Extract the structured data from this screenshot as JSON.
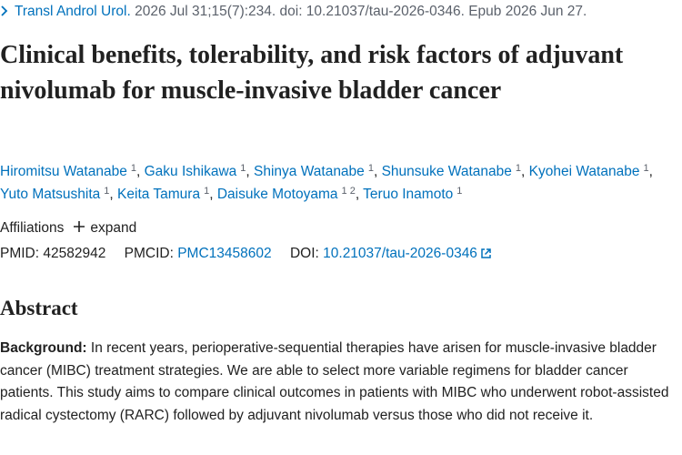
{
  "citation": {
    "journal": "Transl Androl Urol.",
    "details": "2026 Jul 31;15(7):234. doi: 10.21037/tau-2026-0346. Epub 2026 Jun 27."
  },
  "title": "Clinical benefits, tolerability, and risk factors of adjuvant nivolumab for muscle-invasive bladder cancer",
  "authors_separator": ",",
  "authors": [
    {
      "name": "Hiromitsu Watanabe",
      "affiliations": [
        1
      ]
    },
    {
      "name": "Gaku Ishikawa",
      "affiliations": [
        1
      ]
    },
    {
      "name": "Shinya Watanabe",
      "affiliations": [
        1
      ]
    },
    {
      "name": "Shunsuke Watanabe",
      "affiliations": [
        1
      ]
    },
    {
      "name": "Kyohei Watanabe",
      "affiliations": [
        1
      ]
    },
    {
      "name": "Yuto Matsushita",
      "affiliations": [
        1
      ]
    },
    {
      "name": "Keita Tamura",
      "affiliations": [
        1
      ]
    },
    {
      "name": "Daisuke Motoyama",
      "affiliations": [
        1,
        2
      ]
    },
    {
      "name": "Teruo Inamoto",
      "affiliations": [
        1
      ]
    }
  ],
  "affiliations": {
    "label": "Affiliations",
    "toggle": "expand"
  },
  "identifiers": {
    "pmid_label": "PMID:",
    "pmid": "42582942",
    "pmcid_label": "PMCID:",
    "pmcid": "PMC13458602",
    "doi_label": "DOI:",
    "doi": "10.21037/tau-2026-0346"
  },
  "abstract": {
    "heading": "Abstract",
    "background_label": "Background:",
    "background": "In recent years, perioperative-sequential therapies have arisen for muscle-invasive bladder cancer (MIBC) treatment strategies. We are able to select more variable regimens for bladder cancer patients. This study aims to compare clinical outcomes in patients with MIBC who underwent robot-assisted radical cystectomy (RARC) followed by adjuvant nivolumab versus those who did not receive it."
  }
}
